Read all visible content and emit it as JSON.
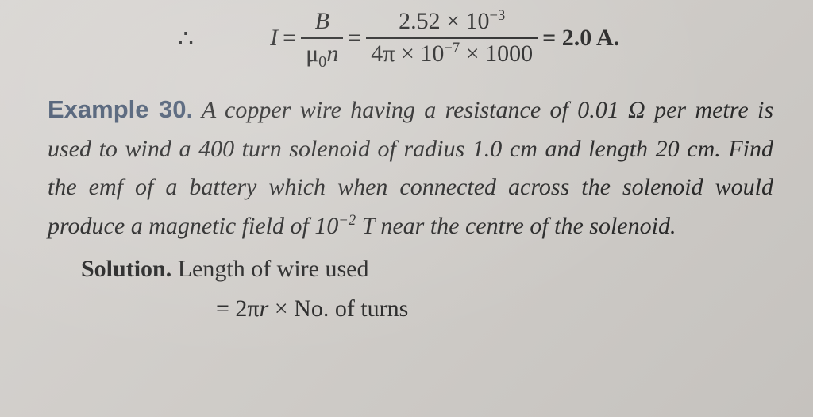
{
  "equation": {
    "therefore": "∴",
    "lhs": "I",
    "eq": "=",
    "frac1_num": "B",
    "frac1_den_mu": "μ",
    "frac1_den_sub": "0",
    "frac1_den_n": "n",
    "frac2_num_a": "2.52 × 10",
    "frac2_num_exp": "−3",
    "frac2_den_a": "4π × 10",
    "frac2_den_exp": "−7",
    "frac2_den_b": " × 1000",
    "result": "= 2.0 A."
  },
  "example": {
    "label": "Example 30.",
    "text_a": " A copper wire having a resistance of 0.01 Ω per metre is used to wind a 400 turn solenoid of radius 1.0 cm and length 20 cm. Find the emf of a battery which when connected across the solenoid would produce a magnetic field of 10",
    "exp": "−2",
    "text_b": " T near the centre of the solenoid."
  },
  "solution": {
    "label": "Solution.",
    "line1": " Length of wire used",
    "expr_eq": "= 2π",
    "expr_r": "r",
    "expr_times": " × No. of turns"
  }
}
